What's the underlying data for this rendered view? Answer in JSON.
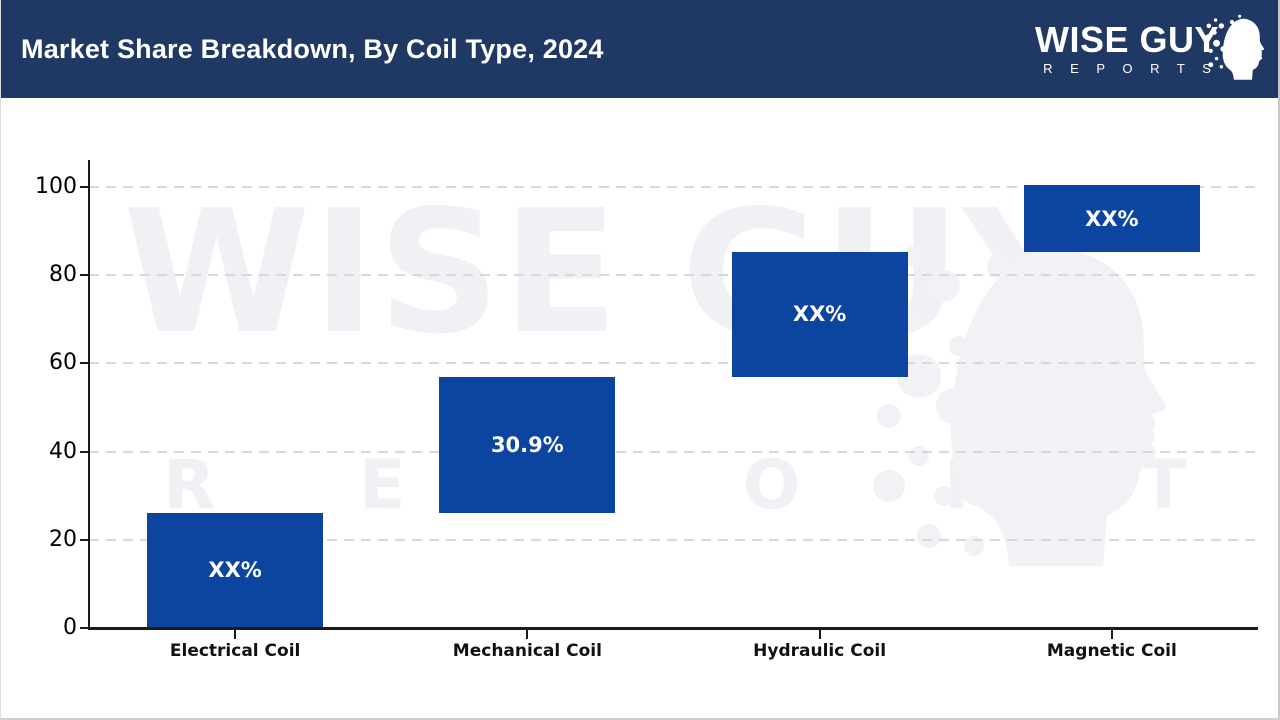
{
  "header": {
    "title": "Market Share Breakdown, By Coil Type, 2024",
    "logo": {
      "line1": "WISE GUY",
      "line2": "R E P O R T S"
    }
  },
  "watermark": {
    "line1": "WISE GUY",
    "line2": "R E P O R T S"
  },
  "chart_data": {
    "type": "bar",
    "subtype": "floating-waterfall",
    "title": "Market Share Breakdown, By Coil Type, 2024",
    "categories": [
      "Electrical Coil",
      "Mechanical Coil",
      "Hydraulic Coil",
      "Magnetic Coil"
    ],
    "segments": [
      {
        "category": "Electrical Coil",
        "start": 0,
        "end": 26.1,
        "label": "XX%"
      },
      {
        "category": "Mechanical Coil",
        "start": 26.1,
        "end": 57.0,
        "label": "30.9%",
        "value": 30.9
      },
      {
        "category": "Hydraulic Coil",
        "start": 57.0,
        "end": 85.3,
        "label": "XX%"
      },
      {
        "category": "Magnetic Coil",
        "start": 85.3,
        "end": 100.4,
        "label": "XX%"
      }
    ],
    "y_ticks": [
      0,
      20,
      40,
      60,
      80,
      100
    ],
    "ylim": [
      0,
      106
    ],
    "grid": "dashed-horizontal",
    "legend": "none",
    "bar_color": "#0C45A0",
    "label_color": "#ffffff"
  },
  "colors": {
    "header_bg": "#1F3864",
    "bar": "#0C45A0",
    "grid": "#d7d8da",
    "axis": "#1b1b1b",
    "watermark": "#f0f1f4"
  }
}
